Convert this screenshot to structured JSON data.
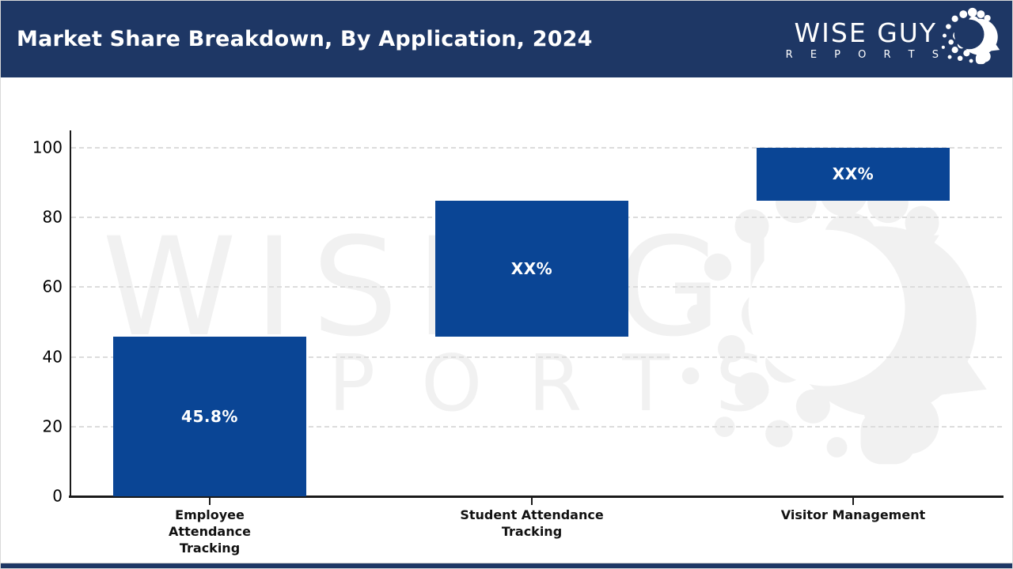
{
  "header": {
    "title": "Market Share Breakdown, By Application, 2024",
    "logo": {
      "primary": "WISE GUY",
      "secondary": "R E P O R T S"
    }
  },
  "watermark": {
    "primary": "WISE GUY",
    "secondary": "REPORTS"
  },
  "chart_data": {
    "type": "bar",
    "subtype": "floating-waterfall",
    "title": "Market Share Breakdown, By Application, 2024",
    "categories": [
      "Employee\nAttendance\nTracking",
      "Student Attendance\nTracking",
      "Visitor Management"
    ],
    "segments": [
      {
        "category": "Employee Attendance Tracking",
        "start": 0,
        "end": 45.8,
        "label": "45.8%"
      },
      {
        "category": "Student Attendance Tracking",
        "start": 45.8,
        "end": 84.9,
        "label": "XX%"
      },
      {
        "category": "Visitor Management",
        "start": 84.9,
        "end": 100,
        "label": "XX%"
      }
    ],
    "xlabel": "",
    "ylabel": "",
    "ylim": [
      0,
      100
    ],
    "yticks": [
      0,
      20,
      40,
      60,
      80,
      100
    ],
    "grid": "horizontal-dashed",
    "bar_color": "#0a4595",
    "bar_label_color": "#ffffff"
  },
  "colors": {
    "header_bg": "#1e3765",
    "bar": "#0a4595",
    "grid": "#dcdcdc",
    "axis": "#1a1a1a",
    "watermark": "#f1f1f1"
  }
}
